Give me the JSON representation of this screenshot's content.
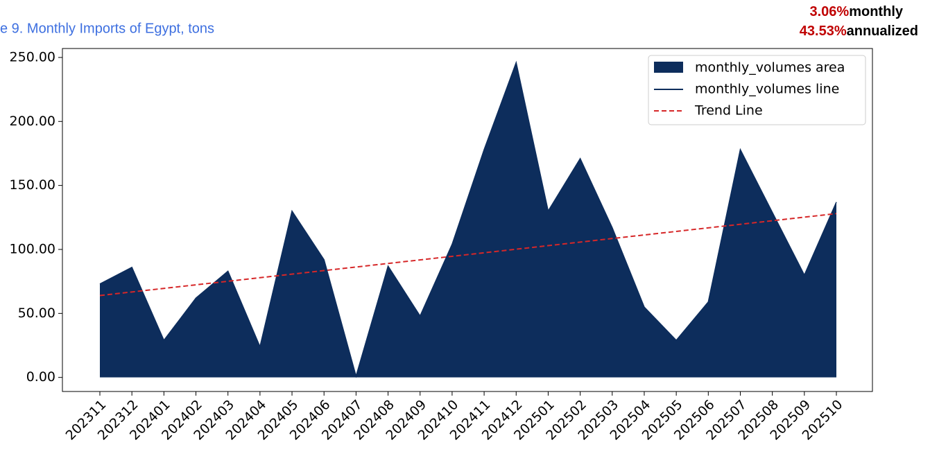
{
  "chart_data": {
    "type": "area",
    "title": "e 9. Monthly Imports of Egypt, tons",
    "annotations": [
      {
        "value": "3.06%",
        "label": "monthly"
      },
      {
        "value": "43.53%",
        "label": "annualized"
      }
    ],
    "categories": [
      "202311",
      "202312",
      "202401",
      "202402",
      "202403",
      "202404",
      "202405",
      "202406",
      "202407",
      "202408",
      "202409",
      "202410",
      "202411",
      "202412",
      "202501",
      "202502",
      "202503",
      "202504",
      "202505",
      "202506",
      "202507",
      "202508",
      "202509",
      "202510"
    ],
    "series": [
      {
        "name": "monthly_volumes area",
        "color": "#0d2d5c",
        "values": [
          73,
          86,
          29,
          62,
          83,
          24,
          130,
          92,
          1,
          87,
          48,
          104,
          178,
          246,
          130,
          171,
          117,
          55,
          29,
          59,
          178,
          129,
          80,
          137
        ]
      },
      {
        "name": "monthly_volumes line",
        "color": "#0d2d5c",
        "values": [
          73,
          86,
          29,
          62,
          83,
          24,
          130,
          92,
          1,
          87,
          48,
          104,
          178,
          246,
          130,
          171,
          117,
          55,
          29,
          59,
          178,
          129,
          80,
          137
        ]
      }
    ],
    "trend_line": {
      "name": "Trend Line",
      "color": "#d62728",
      "values": [
        64,
        128
      ]
    },
    "ylim": [
      -11,
      257
    ],
    "yticks": [
      {
        "value": 0,
        "label": "0.00"
      },
      {
        "value": 50,
        "label": "50.00"
      },
      {
        "value": 100,
        "label": "100.00"
      },
      {
        "value": 150,
        "label": "150.00"
      },
      {
        "value": 200,
        "label": "200.00"
      },
      {
        "value": 250,
        "label": "250.00"
      }
    ],
    "legend": "upper right"
  }
}
